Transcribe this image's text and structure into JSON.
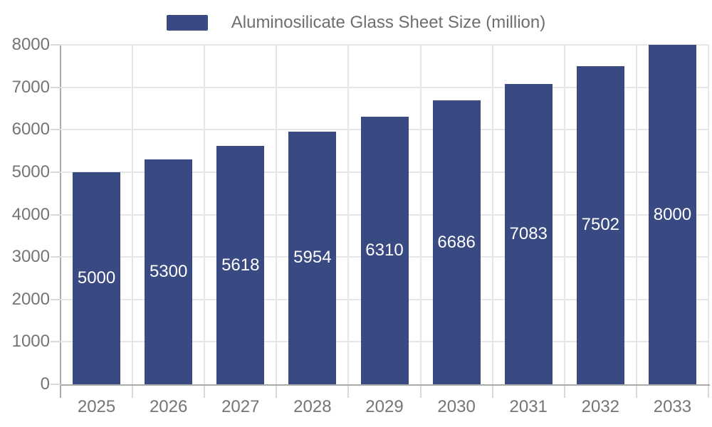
{
  "chart_data": {
    "type": "bar",
    "title": "Aluminosilicate Glass Sheet Size (million)",
    "legend_position": "top",
    "legend_entries": [
      "Aluminosilicate Glass Sheet Size (million)"
    ],
    "categories": [
      "2025",
      "2026",
      "2027",
      "2028",
      "2029",
      "2030",
      "2031",
      "2032",
      "2033"
    ],
    "series": [
      {
        "name": "Aluminosilicate Glass Sheet Size (million)",
        "values": [
          5000,
          5300,
          5618,
          5954,
          6310,
          6686,
          7083,
          7502,
          8000
        ]
      }
    ],
    "value_labels": [
      "5000",
      "5300",
      "5618",
      "5954",
      "6310",
      "6686",
      "7083",
      "7502",
      "8000"
    ],
    "xlabel": "",
    "ylabel": "",
    "ylim": [
      0,
      8000
    ],
    "y_ticks": [
      0,
      1000,
      2000,
      3000,
      4000,
      5000,
      6000,
      7000,
      8000
    ],
    "grid": true,
    "colors": {
      "bar": "#394a82",
      "bar_label": "#ffffff",
      "legend_text": "#6e6e6e",
      "tick_text": "#757575",
      "axis_line": "#aaaaaa",
      "grid_line": "#e6e6e6",
      "tick_line": "#d9d9d9"
    }
  }
}
